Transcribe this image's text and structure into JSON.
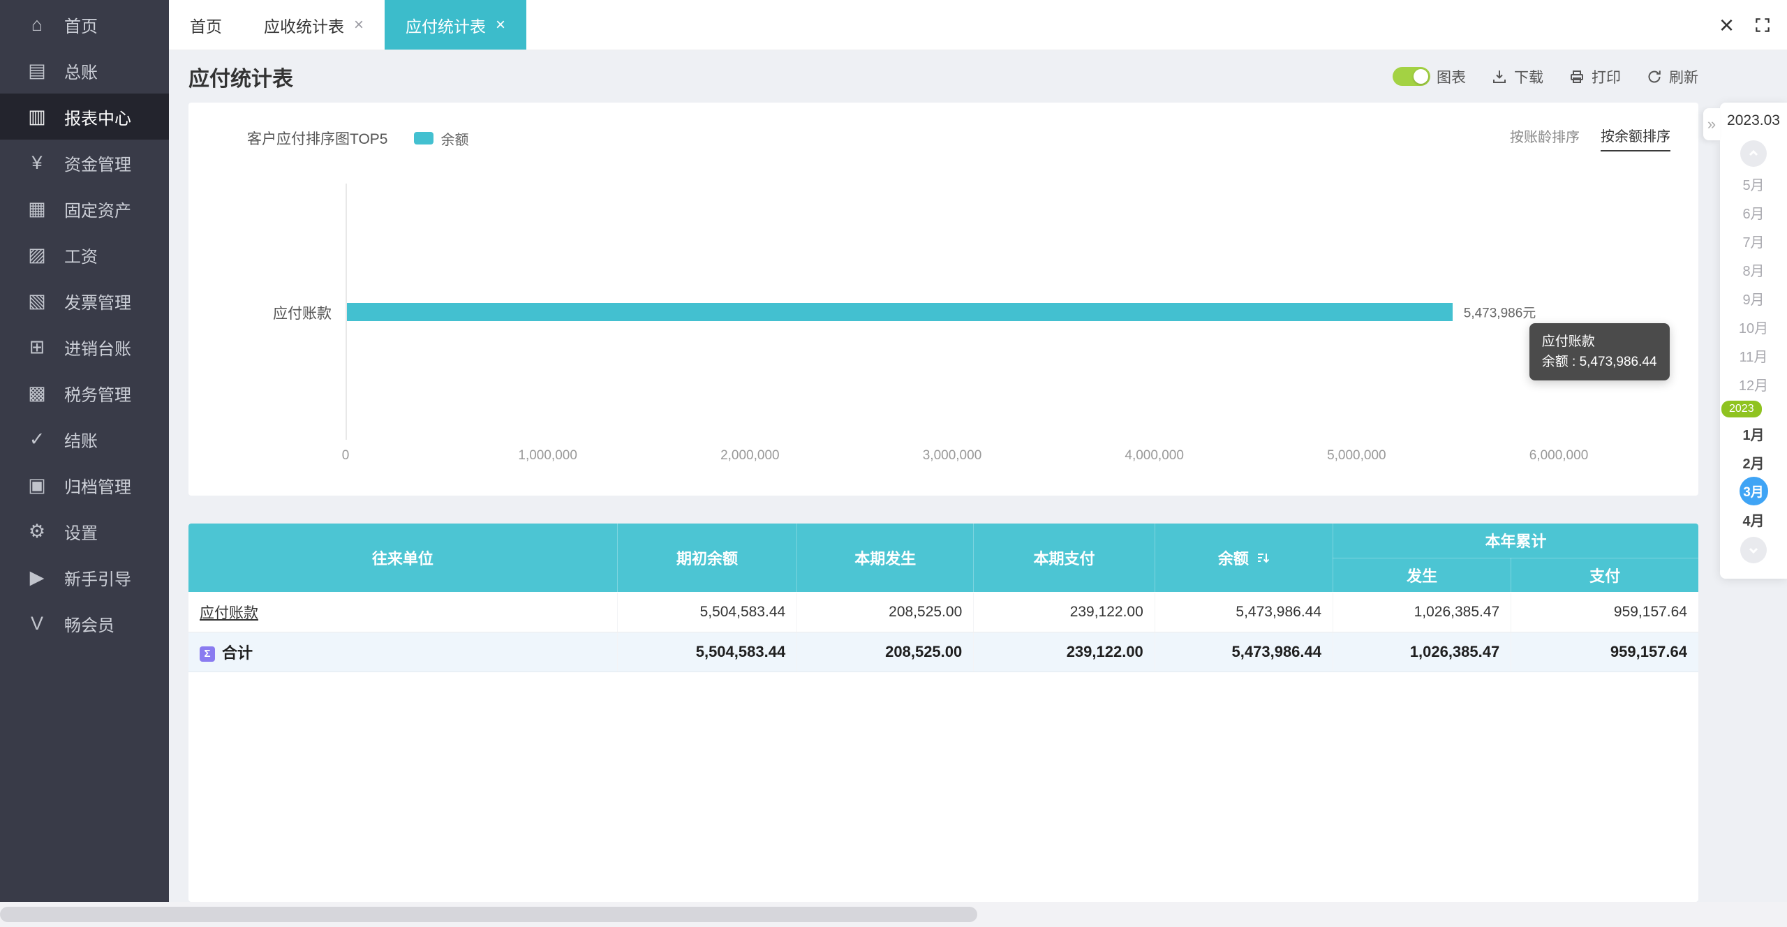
{
  "colors": {
    "accent_teal": "#3fbecd",
    "table_header_teal": "#4cc5d3",
    "bar_teal": "#43c0d0",
    "toggle_green": "#a3d243",
    "active_month_blue": "#3fa4f5",
    "year_badge_green": "#8fc320",
    "sidebar_bg": "#393b48",
    "tooltip_bg": "#323232"
  },
  "sidebar": {
    "items": [
      {
        "key": "home",
        "label": "首页",
        "icon": "home-icon"
      },
      {
        "key": "general-ledger",
        "label": "总账",
        "icon": "ledger-icon"
      },
      {
        "key": "report-center",
        "label": "报表中心",
        "icon": "report-center-icon",
        "active": true
      },
      {
        "key": "fund-management",
        "label": "资金管理",
        "icon": "fund-icon"
      },
      {
        "key": "fixed-assets",
        "label": "固定资产",
        "icon": "fixed-asset-icon"
      },
      {
        "key": "salary",
        "label": "工资",
        "icon": "salary-icon"
      },
      {
        "key": "invoice-management",
        "label": "发票管理",
        "icon": "invoice-icon"
      },
      {
        "key": "inventory-ledger",
        "label": "进销台账",
        "icon": "inventory-ledger-icon"
      },
      {
        "key": "tax-management",
        "label": "税务管理",
        "icon": "tax-icon"
      },
      {
        "key": "closing",
        "label": "结账",
        "icon": "closing-icon"
      },
      {
        "key": "archive-management",
        "label": "归档管理",
        "icon": "archive-icon"
      },
      {
        "key": "settings",
        "label": "设置",
        "icon": "settings-icon"
      },
      {
        "key": "beginner-guide",
        "label": "新手引导",
        "icon": "guide-icon"
      },
      {
        "key": "member",
        "label": "畅会员",
        "icon": "member-icon"
      }
    ]
  },
  "tabs": {
    "close_glyph": "×",
    "items": [
      {
        "key": "home",
        "label": "首页",
        "closable": false,
        "active": false
      },
      {
        "key": "receivable-report",
        "label": "应收统计表",
        "closable": true,
        "active": false
      },
      {
        "key": "payable-report",
        "label": "应付统计表",
        "closable": true,
        "active": true
      }
    ]
  },
  "window": {
    "close_glyph": "×"
  },
  "page": {
    "title": "应付统计表"
  },
  "toolbar": {
    "chart_toggle_label": "图表",
    "toggle_on": true,
    "download_label": "下载",
    "print_label": "打印",
    "refresh_label": "刷新"
  },
  "chart": {
    "title": "客户应付排序图TOP5",
    "legend_label": "余额",
    "sort_by_age": "按账龄排序",
    "sort_by_balance": "按余额排序",
    "bar_value_label": "5,473,986元",
    "tooltip": {
      "title": "应付账款",
      "line": "余额 : 5,473,986.44"
    }
  },
  "chart_data": {
    "type": "bar",
    "orientation": "horizontal",
    "title": "客户应付排序图TOP5",
    "series_name": "余额",
    "categories": [
      "应付账款"
    ],
    "values": [
      5473986.44
    ],
    "xlim": [
      0,
      6000000
    ],
    "x_ticks": [
      0,
      1000000,
      2000000,
      3000000,
      4000000,
      5000000,
      6000000
    ],
    "x_tick_labels": [
      "0",
      "1,000,000",
      "2,000,000",
      "3,000,000",
      "4,000,000",
      "5,000,000",
      "6,000,000"
    ],
    "bar_color": "#43c0d0",
    "value_label": "5,473,986元",
    "grid": false,
    "legend_position": "top"
  },
  "table": {
    "group_header": "本年累计",
    "columns": [
      "往来单位",
      "期初余额",
      "本期发生",
      "本期支付",
      "余额"
    ],
    "sub_columns": [
      "发生",
      "支付"
    ],
    "rows": [
      {
        "name": "应付账款",
        "values": [
          "5,504,583.44",
          "208,525.00",
          "239,122.00",
          "5,473,986.44",
          "1,026,385.47",
          "959,157.64"
        ]
      }
    ],
    "total_row": {
      "name": "合计",
      "values": [
        "5,504,583.44",
        "208,525.00",
        "239,122.00",
        "5,473,986.44",
        "1,026,385.47",
        "959,157.64"
      ]
    }
  },
  "month_rail": {
    "current_period": "2023.03",
    "collapse_glyph": "»",
    "entries": [
      {
        "key": "may",
        "label": "5月",
        "kind": "month",
        "state": "muted"
      },
      {
        "key": "jun",
        "label": "6月",
        "kind": "month",
        "state": "muted"
      },
      {
        "key": "jul",
        "label": "7月",
        "kind": "month",
        "state": "muted"
      },
      {
        "key": "aug",
        "label": "8月",
        "kind": "month",
        "state": "muted"
      },
      {
        "key": "sep",
        "label": "9月",
        "kind": "month",
        "state": "muted"
      },
      {
        "key": "oct",
        "label": "10月",
        "kind": "month",
        "state": "muted"
      },
      {
        "key": "nov",
        "label": "11月",
        "kind": "month",
        "state": "muted"
      },
      {
        "key": "dec",
        "label": "12月",
        "kind": "month",
        "state": "muted"
      },
      {
        "key": "year-2023",
        "label": "2023",
        "kind": "year"
      },
      {
        "key": "jan",
        "label": "1月",
        "kind": "month",
        "state": "normal"
      },
      {
        "key": "feb",
        "label": "2月",
        "kind": "month",
        "state": "normal"
      },
      {
        "key": "mar",
        "label": "3月",
        "kind": "month",
        "state": "active"
      },
      {
        "key": "apr",
        "label": "4月",
        "kind": "month",
        "state": "normal"
      }
    ]
  }
}
